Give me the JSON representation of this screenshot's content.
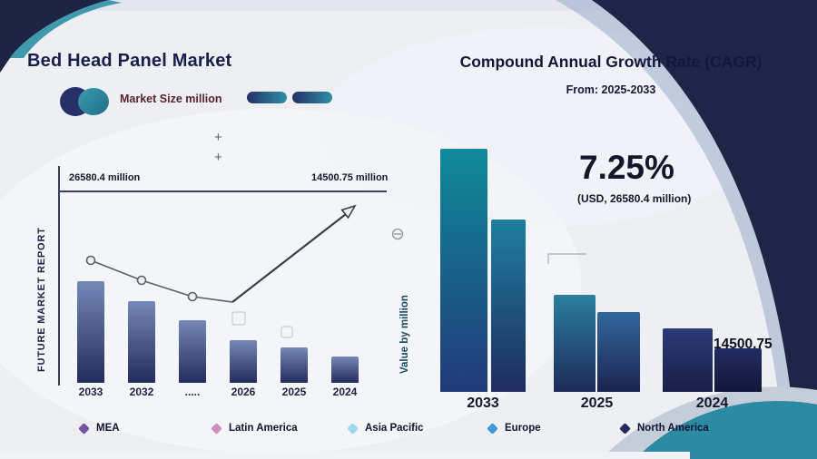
{
  "left_panel": {
    "title": "Bed Head Panel Market",
    "legend_label": "Market Size million",
    "side_label": "FUTURE MARKET REPORT",
    "top_left_value": "26580.4 million",
    "top_right_value": "14500.75 million"
  },
  "right_panel": {
    "title": "Compound Annual Growth Rate (CAGR)",
    "subtitle": "From: 2025-2033",
    "cagr_value": "7.25%",
    "cagr_caption": "(USD, 26580.4 million)",
    "value_label": "14500.75",
    "axis_label": "Value by million"
  },
  "decorations": {
    "plus_top": "+",
    "plus_bottom": "+"
  },
  "colors": {
    "navy": "#1e2547",
    "teal": "#2b8da4",
    "left_bar_top": "#7588b8",
    "left_bar_bottom": "#232c5e",
    "background": "#edeff3"
  },
  "bottom_legend": {
    "items": [
      {
        "label": "MEA",
        "color": "#7456a0"
      },
      {
        "label": "Latin America",
        "color": "#cf8fc0"
      },
      {
        "label": "Asia Pacific",
        "color": "#9fd9ef"
      },
      {
        "label": "Europe",
        "color": "#3d9bd8"
      },
      {
        "label": "North America",
        "color": "#232a5c"
      }
    ]
  },
  "chart_data": [
    {
      "id": "market_size_trend",
      "type": "bar",
      "title": "Bed Head Panel Market — Market Size (million)",
      "categories": [
        "2033",
        "2032",
        ".....",
        "2026",
        "2025",
        "2024"
      ],
      "series": [
        {
          "name": "Market Size million",
          "labeled_values": {
            "2033": 26580.4,
            "2024": 14500.75
          },
          "bar_heights_relative": [
            1.0,
            0.8,
            0.62,
            0.42,
            0.35,
            0.26
          ]
        }
      ],
      "trend_line": {
        "description": "open-circle markers declining over 2033-2026, then bold arrow rising to upper right",
        "marker_heights_relative": [
          0.6,
          0.5,
          0.42
        ]
      },
      "annotations": [
        "26580.4 million",
        "14500.75 million"
      ],
      "axis_note": "no numeric axis ticks shown; years on x-axis"
    },
    {
      "id": "cagr_chart",
      "type": "bar",
      "title": "Compound Annual Growth Rate (CAGR)",
      "subtitle": "From: 2025-2033",
      "categories": [
        "2033",
        "2025",
        "2024"
      ],
      "groups": [
        {
          "category": "2033",
          "bars": [
            {
              "h": 1.0,
              "top": "#0f8a9c",
              "bottom": "#213a75"
            },
            {
              "h": 0.71,
              "top": "#1e7fa0",
              "bottom": "#1f2c5f"
            }
          ]
        },
        {
          "category": "2025",
          "bars": [
            {
              "h": 0.4,
              "top": "#2b7fa0",
              "bottom": "#1d2a5a"
            },
            {
              "h": 0.33,
              "top": "#33689c",
              "bottom": "#1a2450"
            }
          ]
        },
        {
          "category": "2024",
          "bars": [
            {
              "h": 0.26,
              "top": "#2c3a78",
              "bottom": "#181f48"
            },
            {
              "h": 0.18,
              "top": "#222c63",
              "bottom": "#121737"
            }
          ]
        }
      ],
      "cagr": "7.25%",
      "cagr_basis": "(USD, 26580.4 million)",
      "value_label": {
        "text": "14500.75",
        "category": "2024"
      },
      "ylabel": "Value by million"
    }
  ]
}
